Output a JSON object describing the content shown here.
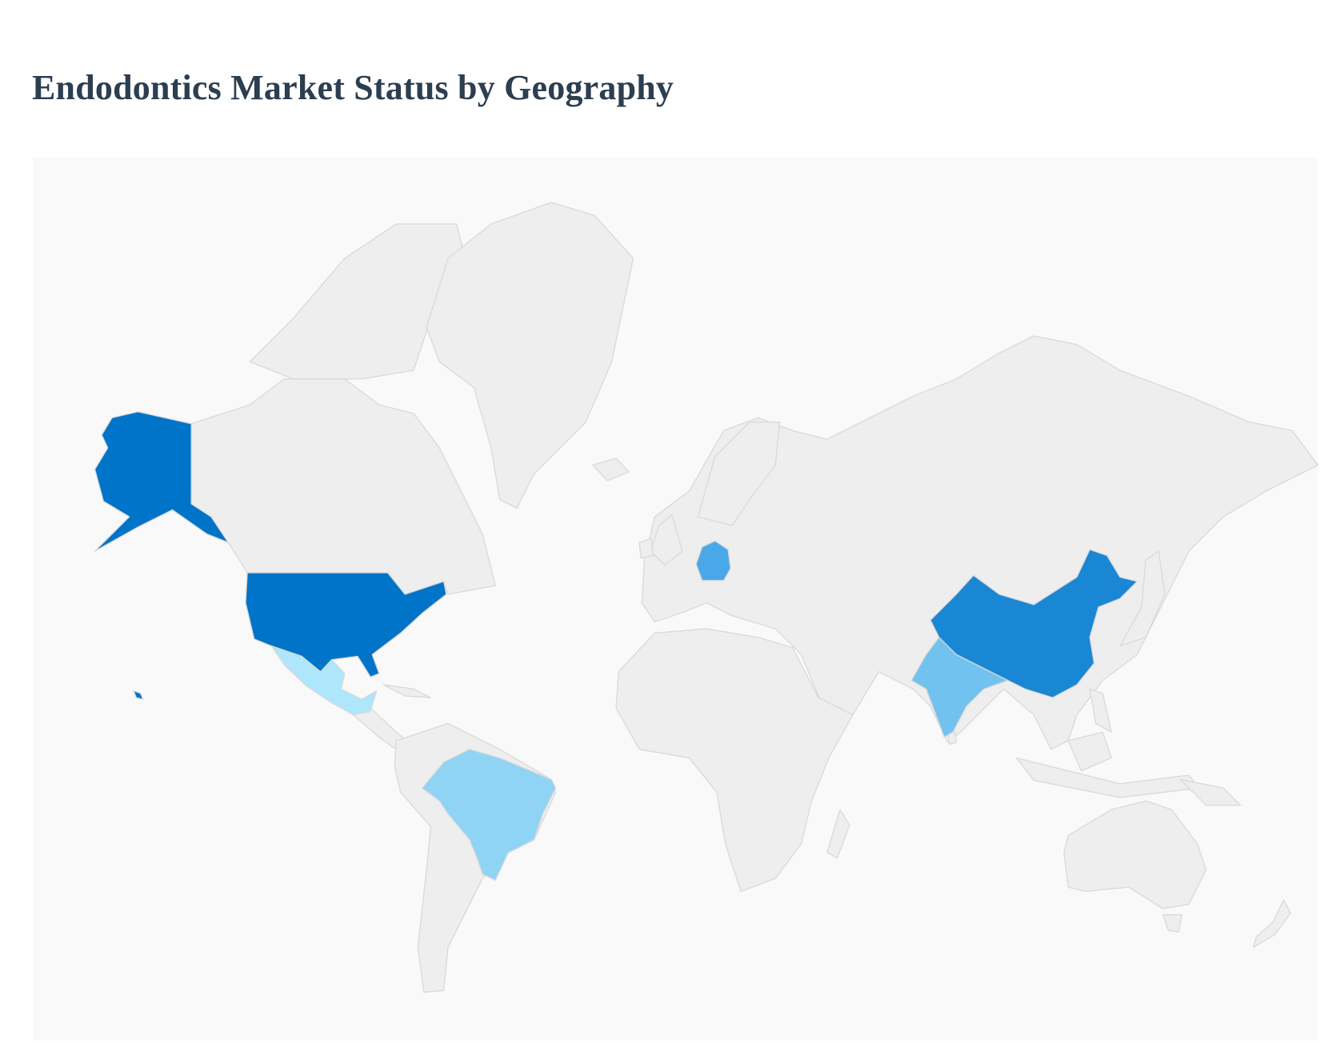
{
  "header": {
    "title": "Endodontics Market Status by Geography"
  },
  "map": {
    "background_color": "#f9f9f9",
    "land_color": "#eeeeee",
    "border_color": "#d9d9d9",
    "highlighted": {
      "usa": "#0074c8",
      "china": "#1a87d4",
      "germany": "#4aa8e8",
      "india": "#72c2ef",
      "brazil": "#90d4f5",
      "mexico": "#aee6fb"
    }
  }
}
